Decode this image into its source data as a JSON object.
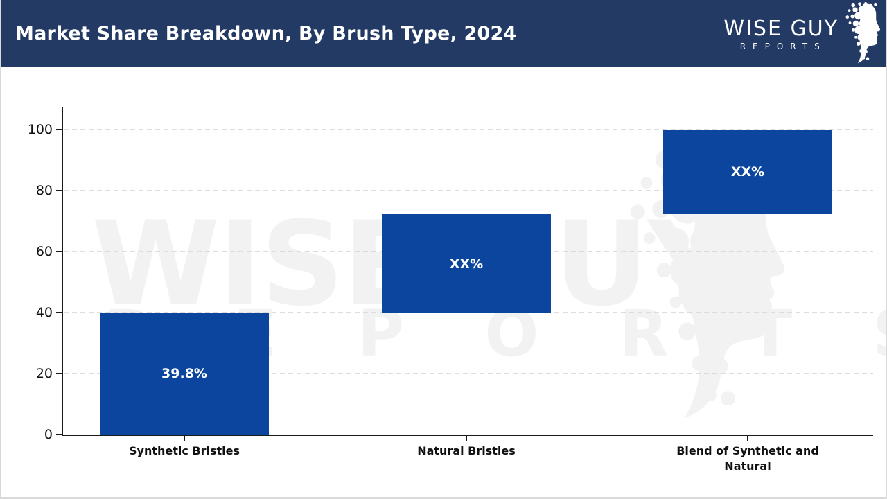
{
  "header": {
    "title": "Market Share Breakdown, By Brush Type, 2024",
    "bg_color": "#233A64",
    "logo": {
      "line1": "WISE GUY",
      "line2": "REPORTS",
      "face_icon": "dotted-head-profile-icon",
      "color": "#FFFFFF"
    }
  },
  "watermark": {
    "line1": "WISE GUY",
    "line2": "R E P O R T S",
    "face_icon": "dotted-head-profile-icon",
    "color": "#F2F2F2"
  },
  "chart_data": {
    "type": "bar",
    "subtype": "waterfall",
    "title": "Market Share Breakdown, By Brush Type, 2024",
    "categories": [
      "Synthetic Bristles",
      "Natural Bristles",
      "Blend of Synthetic and Natural"
    ],
    "bars": [
      {
        "category": "Synthetic Bristles",
        "start": 0,
        "end": 39.8,
        "label": "39.8%"
      },
      {
        "category": "Natural Bristles",
        "start": 39.8,
        "end": 72.2,
        "label": "XX%"
      },
      {
        "category": "Blend of Synthetic and Natural",
        "start": 72.2,
        "end": 100,
        "label": "XX%"
      }
    ],
    "y_ticks": [
      0,
      20,
      40,
      60,
      80,
      100
    ],
    "ylim": [
      0,
      107
    ],
    "xlabel": "",
    "ylabel": "",
    "grid": "horizontal-dashed",
    "legend": "none",
    "bar_color": "#0B459E",
    "bar_label_color": "#FFFFFF",
    "grid_color": "#DCDCDC",
    "axis_color": "#1A1A1A"
  }
}
